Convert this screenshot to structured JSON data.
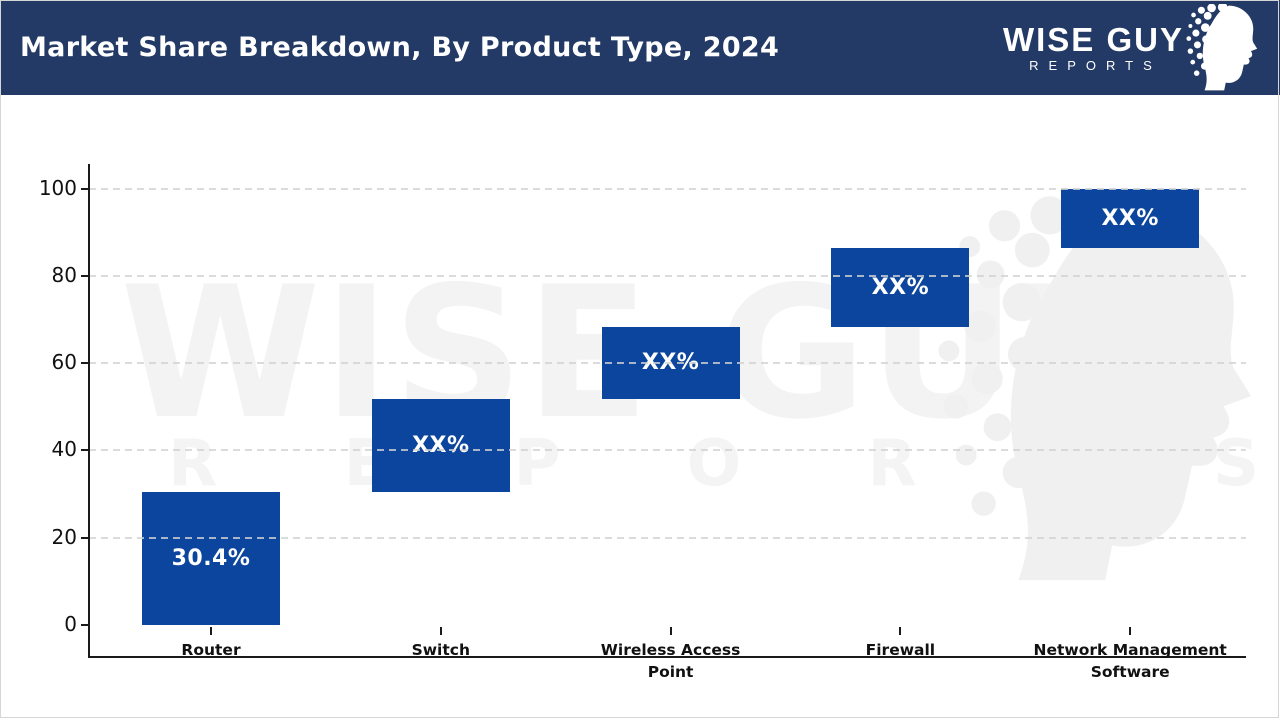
{
  "header": {
    "title": "Market Share Breakdown, By Product Type, 2024",
    "logo": {
      "line1": "WISE GUY",
      "line2": "REPORTS",
      "head_icon": "dotted-face-profile"
    }
  },
  "watermark": {
    "line1": "WISE GUY",
    "line2": "R E P O R T S",
    "head_icon": "dotted-face-profile"
  },
  "colors": {
    "header_bg": "#233a66",
    "bar": "#0c459e",
    "bar_label": "#ffffff",
    "axis": "#1a1a1a",
    "grid": "#d2d2d2",
    "watermark": "#f3f3f3"
  },
  "chart_data": {
    "type": "bar",
    "subtype": "waterfall",
    "title": "Market Share Breakdown, By Product Type, 2024",
    "categories": [
      "Router",
      "Switch",
      "Wireless Access\nPoint",
      "Firewall",
      "Network Management\nSoftware"
    ],
    "segments": [
      {
        "category": "Router",
        "start": 0,
        "end": 30.4,
        "label": "30.4%"
      },
      {
        "category": "Switch",
        "start": 30.4,
        "end": 51.8,
        "label": "XX%"
      },
      {
        "category": "Wireless Access Point",
        "start": 51.8,
        "end": 68.3,
        "label": "XX%"
      },
      {
        "category": "Firewall",
        "start": 68.3,
        "end": 86.4,
        "label": "XX%"
      },
      {
        "category": "Network Management Software",
        "start": 86.4,
        "end": 100,
        "label": "XX%"
      }
    ],
    "xlabel": "",
    "ylabel": "",
    "ylim": [
      0,
      100
    ],
    "yticks": [
      0,
      20,
      40,
      60,
      80,
      100
    ],
    "grid": "horizontal-dashed",
    "legend": "none"
  }
}
